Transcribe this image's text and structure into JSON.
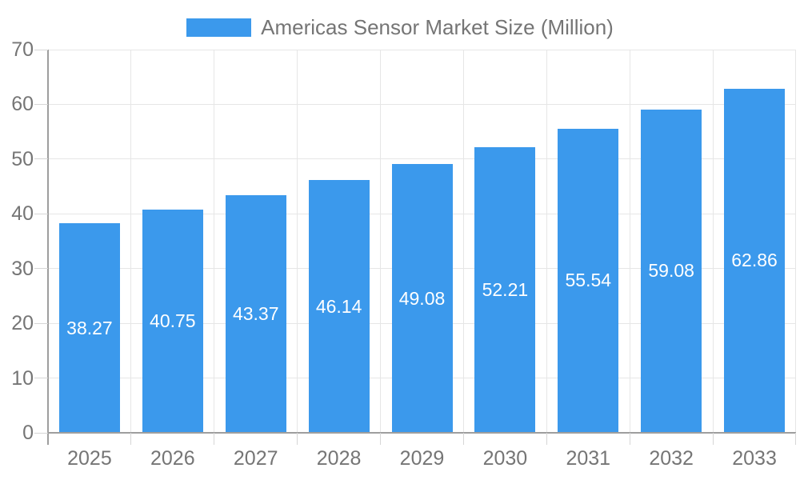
{
  "legend": {
    "label": "Americas Sensor Market Size (Million)"
  },
  "colors": {
    "bar": "#3B99EC",
    "value_label": "#ffffff",
    "axis_text": "#757575",
    "grid": "#e6e6e6",
    "tick": "#d6d6d6",
    "axis_line": "#9e9e9e",
    "background": "#ffffff"
  },
  "chart_data": {
    "type": "bar",
    "title": "Americas Sensor Market Size (Million)",
    "series": [
      {
        "name": "Americas Sensor Market Size (Million)",
        "values": [
          38.27,
          40.75,
          43.37,
          46.14,
          49.08,
          52.21,
          55.54,
          59.08,
          62.86
        ]
      }
    ],
    "categories": [
      "2025",
      "2026",
      "2027",
      "2028",
      "2029",
      "2030",
      "2031",
      "2032",
      "2033"
    ],
    "value_labels": [
      "38.27",
      "40.75",
      "43.37",
      "46.14",
      "49.08",
      "52.21",
      "55.54",
      "59.08",
      "62.86"
    ],
    "xlabel": "",
    "ylabel": "",
    "ylim": [
      0,
      70
    ],
    "yticks": [
      0,
      10,
      20,
      30,
      40,
      50,
      60,
      70
    ],
    "grid": true,
    "legend_position": "top-center",
    "value_label_position": "center-of-bar"
  }
}
